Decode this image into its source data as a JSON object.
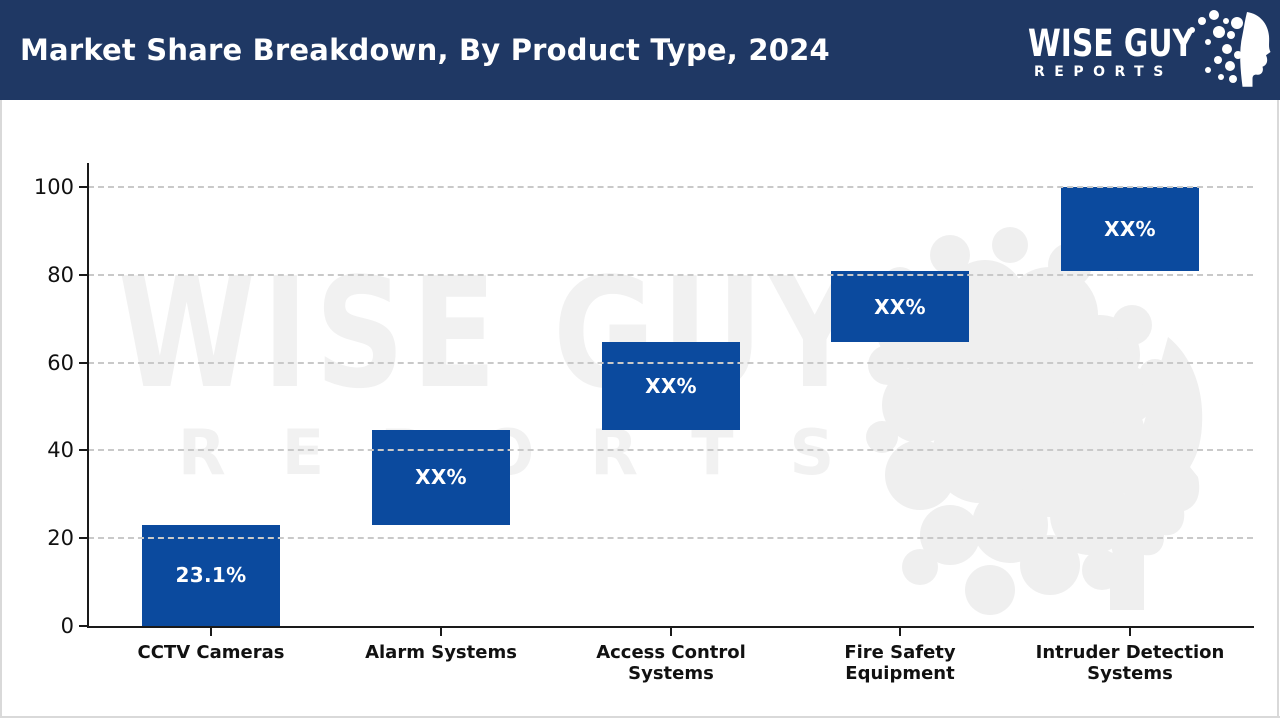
{
  "header": {
    "title": "Market Share Breakdown, By Product Type, 2024",
    "bg_color": "#1f3864",
    "logo": {
      "line1": "WISE GUY",
      "line2": "REPORTS"
    }
  },
  "watermark": {
    "line1": "WISE GUY",
    "line2": "REPORTS"
  },
  "chart_data": {
    "type": "bar",
    "variant": "waterfall",
    "title": "Market Share Breakdown, By Product Type, 2024",
    "categories": [
      "CCTV Cameras",
      "Alarm Systems",
      "Access Control\nSystems",
      "Fire Safety\nEquipment",
      "Intruder Detection\nSystems"
    ],
    "segments": [
      {
        "category": "CCTV Cameras",
        "start": 0,
        "end": 23.1,
        "label": "23.1%"
      },
      {
        "category": "Alarm Systems",
        "start": 23.1,
        "end": 44.7,
        "label": "XX%"
      },
      {
        "category": "Access Control Systems",
        "start": 44.7,
        "end": 64.6,
        "label": "XX%"
      },
      {
        "category": "Fire Safety Equipment",
        "start": 64.6,
        "end": 80.9,
        "label": "XX%"
      },
      {
        "category": "Intruder Detection Systems",
        "start": 80.9,
        "end": 100,
        "label": "XX%"
      }
    ],
    "yticks": [
      0,
      20,
      40,
      60,
      80,
      100
    ],
    "ylim": [
      0,
      105
    ],
    "xlabel": "",
    "ylabel": "",
    "legend": "none",
    "bar_color": "#0b4a9e",
    "grid": {
      "horizontal": true,
      "style": "dashed",
      "color": "#c9c9c9",
      "drawn_over_bars": true
    }
  }
}
